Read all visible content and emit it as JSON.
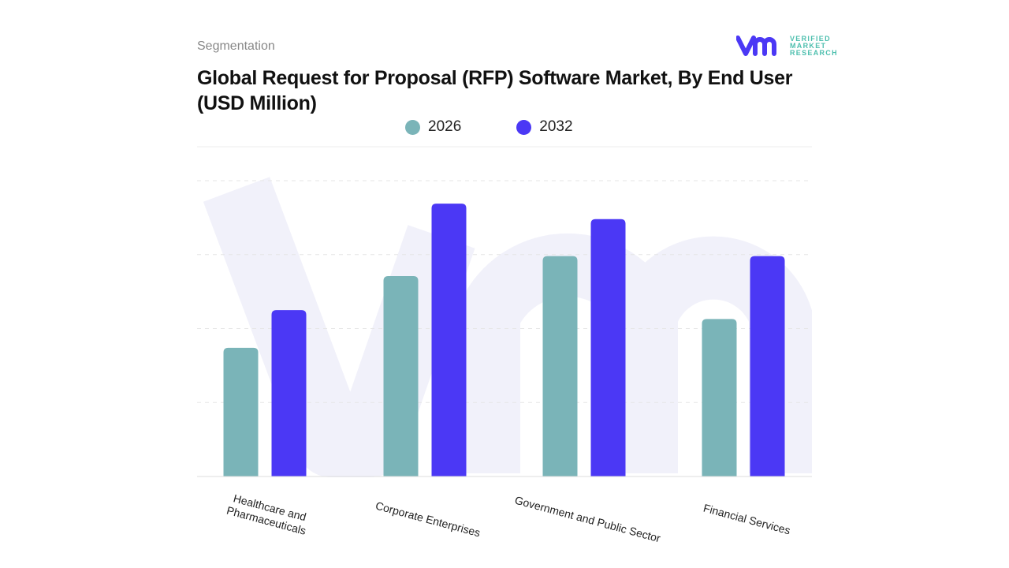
{
  "header": {
    "segment_label": "Segmentation",
    "title": "Global Request for Proposal (RFP) Software Market, By End User (USD Million)"
  },
  "logo": {
    "text": "VERIFIED MARKET RESEARCH",
    "line1": "VERIFIED",
    "line2": "MARKET",
    "line3": "RESEARCH"
  },
  "chart_data": {
    "type": "bar",
    "title": "Global Request for Proposal (RFP) Software Market, By End User (USD Million)",
    "categories": [
      "Healthcare and Pharmaceuticals",
      "Corporate Enterprises",
      "Government and Public Sector",
      "Financial Services"
    ],
    "series": [
      {
        "name": "2026",
        "color": "#7ab4b8",
        "values": [
          1.74,
          2.71,
          2.98,
          2.13
        ]
      },
      {
        "name": "2032",
        "color": "#4b38f5",
        "values": [
          2.25,
          3.69,
          3.48,
          2.98
        ]
      }
    ],
    "ylim": [
      0,
      4
    ],
    "grid": true,
    "legend": "top",
    "xlabel": "",
    "ylabel": ""
  }
}
